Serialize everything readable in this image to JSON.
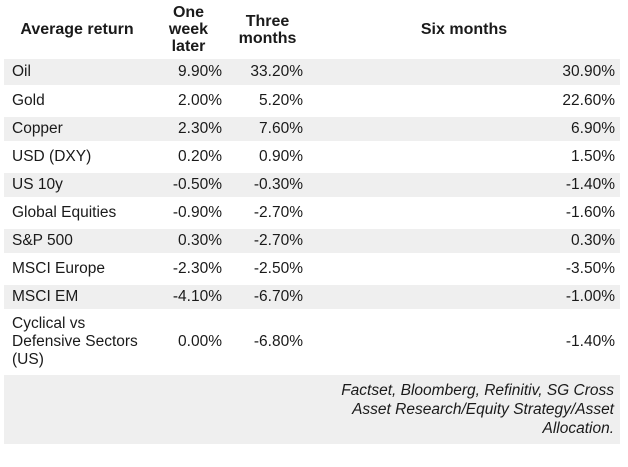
{
  "chart_data": {
    "type": "table",
    "columns": [
      "Average return",
      "One week later",
      "Three months",
      "Six months"
    ],
    "rows": [
      {
        "asset": "Oil",
        "one_week_later": "9.90%",
        "three_months": "33.20%",
        "six_months": "30.90%"
      },
      {
        "asset": "Gold",
        "one_week_later": "2.00%",
        "three_months": "5.20%",
        "six_months": "22.60%"
      },
      {
        "asset": "Copper",
        "one_week_later": "2.30%",
        "three_months": "7.60%",
        "six_months": "6.90%"
      },
      {
        "asset": "USD (DXY)",
        "one_week_later": "0.20%",
        "three_months": "0.90%",
        "six_months": "1.50%"
      },
      {
        "asset": "US 10y",
        "one_week_later": "-0.50%",
        "three_months": "-0.30%",
        "six_months": "-1.40%"
      },
      {
        "asset": "Global Equities",
        "one_week_later": "-0.90%",
        "three_months": "-2.70%",
        "six_months": "-1.60%"
      },
      {
        "asset": "S&P 500",
        "one_week_later": "0.30%",
        "three_months": "-2.70%",
        "six_months": "0.30%"
      },
      {
        "asset": "MSCI Europe",
        "one_week_later": "-2.30%",
        "three_months": "-2.50%",
        "six_months": "-3.50%"
      },
      {
        "asset": "MSCI EM",
        "one_week_later": "-4.10%",
        "three_months": "-6.70%",
        "six_months": "-1.00%"
      },
      {
        "asset": "Cyclical vs Defensive Sectors (US)",
        "one_week_later": "0.00%",
        "three_months": "-6.80%",
        "six_months": "-1.40%"
      }
    ],
    "source_note": "Factset, Bloomberg, Refinitiv, SG Cross Asset Research/Equity Strategy/Asset Allocation.",
    "layout_hints": {
      "striped_rows": "odd",
      "value_alignment": "right",
      "header_alignment": "center"
    }
  },
  "colors": {
    "row_stripe": "#efefef",
    "text": "#1a1a1a",
    "background": "#ffffff"
  }
}
